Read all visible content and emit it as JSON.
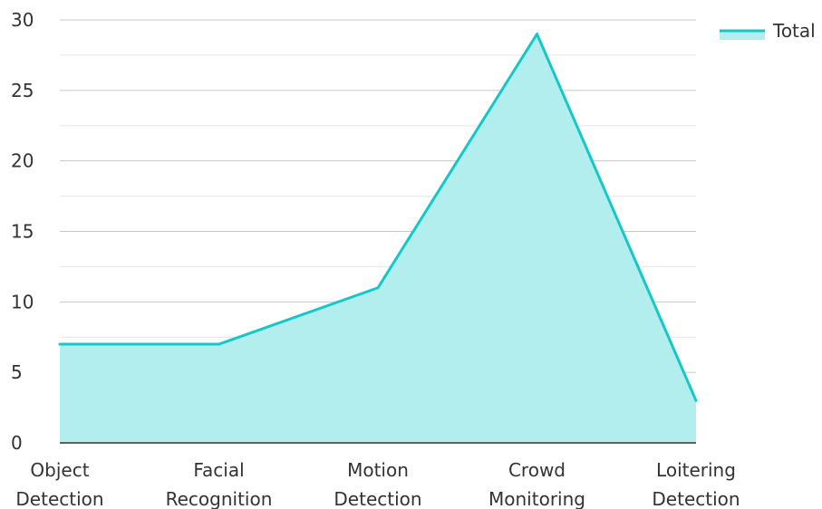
{
  "chart_data": {
    "type": "area",
    "categories": [
      [
        "Object",
        "Detection"
      ],
      [
        "Facial",
        "Recognition"
      ],
      [
        "Motion",
        "Detection"
      ],
      [
        "Crowd",
        "Monitoring"
      ],
      [
        "Loitering",
        "Detection"
      ]
    ],
    "series": [
      {
        "name": "Total",
        "values": [
          7,
          7,
          11,
          29,
          3
        ]
      }
    ],
    "y_ticks": [
      0,
      5,
      10,
      15,
      20,
      25,
      30
    ],
    "ylim": [
      0,
      30
    ],
    "grid": true,
    "legend_position": "top-right",
    "colors": {
      "line": "#16c7c7",
      "fill": "#b2eeee",
      "major_grid": "#c8c8c8",
      "minor_grid": "#e6e6e6",
      "axis": "#333333"
    }
  }
}
